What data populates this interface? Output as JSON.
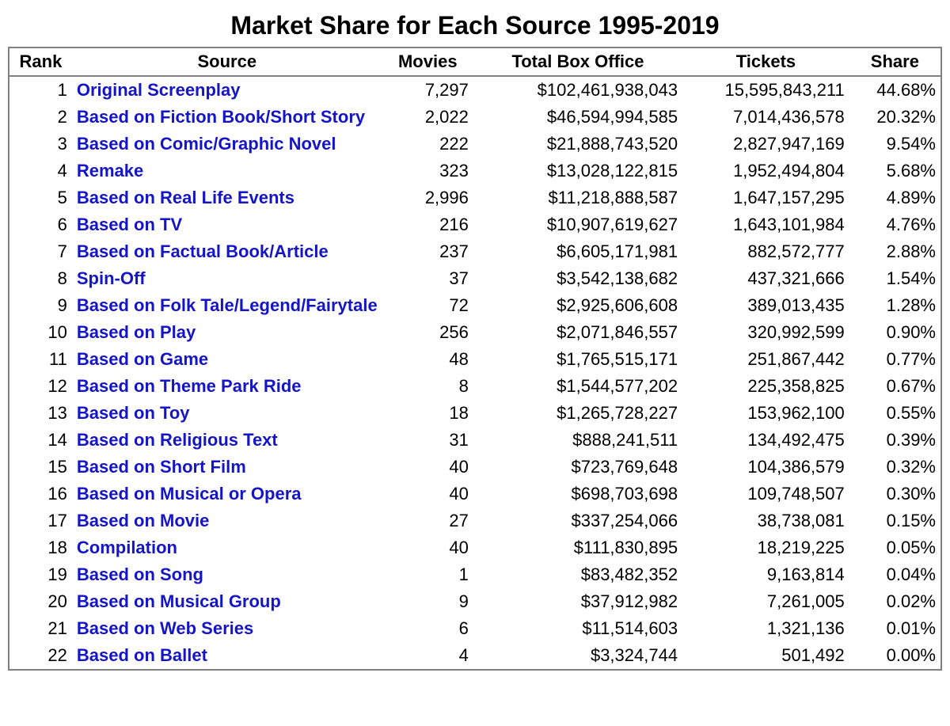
{
  "title": "Market Share for Each Source 1995-2019",
  "columns": {
    "rank": "Rank",
    "source": "Source",
    "movies": "Movies",
    "box": "Total Box Office",
    "tickets": "Tickets",
    "share": "Share"
  },
  "link_color": "#1515c8",
  "border_color": "#808080",
  "rows": [
    {
      "rank": "1",
      "source": "Original Screenplay",
      "movies": "7,297",
      "box": "$102,461,938,043",
      "tickets": "15,595,843,211",
      "share": "44.68%"
    },
    {
      "rank": "2",
      "source": "Based on Fiction Book/Short Story",
      "movies": "2,022",
      "box": "$46,594,994,585",
      "tickets": "7,014,436,578",
      "share": "20.32%"
    },
    {
      "rank": "3",
      "source": "Based on Comic/Graphic Novel",
      "movies": "222",
      "box": "$21,888,743,520",
      "tickets": "2,827,947,169",
      "share": "9.54%"
    },
    {
      "rank": "4",
      "source": "Remake",
      "movies": "323",
      "box": "$13,028,122,815",
      "tickets": "1,952,494,804",
      "share": "5.68%"
    },
    {
      "rank": "5",
      "source": "Based on Real Life Events",
      "movies": "2,996",
      "box": "$11,218,888,587",
      "tickets": "1,647,157,295",
      "share": "4.89%"
    },
    {
      "rank": "6",
      "source": "Based on TV",
      "movies": "216",
      "box": "$10,907,619,627",
      "tickets": "1,643,101,984",
      "share": "4.76%"
    },
    {
      "rank": "7",
      "source": "Based on Factual Book/Article",
      "movies": "237",
      "box": "$6,605,171,981",
      "tickets": "882,572,777",
      "share": "2.88%"
    },
    {
      "rank": "8",
      "source": "Spin-Off",
      "movies": "37",
      "box": "$3,542,138,682",
      "tickets": "437,321,666",
      "share": "1.54%"
    },
    {
      "rank": "9",
      "source": "Based on Folk Tale/Legend/Fairytale",
      "movies": "72",
      "box": "$2,925,606,608",
      "tickets": "389,013,435",
      "share": "1.28%"
    },
    {
      "rank": "10",
      "source": "Based on Play",
      "movies": "256",
      "box": "$2,071,846,557",
      "tickets": "320,992,599",
      "share": "0.90%"
    },
    {
      "rank": "11",
      "source": "Based on Game",
      "movies": "48",
      "box": "$1,765,515,171",
      "tickets": "251,867,442",
      "share": "0.77%"
    },
    {
      "rank": "12",
      "source": "Based on Theme Park Ride",
      "movies": "8",
      "box": "$1,544,577,202",
      "tickets": "225,358,825",
      "share": "0.67%"
    },
    {
      "rank": "13",
      "source": "Based on Toy",
      "movies": "18",
      "box": "$1,265,728,227",
      "tickets": "153,962,100",
      "share": "0.55%"
    },
    {
      "rank": "14",
      "source": "Based on Religious Text",
      "movies": "31",
      "box": "$888,241,511",
      "tickets": "134,492,475",
      "share": "0.39%"
    },
    {
      "rank": "15",
      "source": "Based on Short Film",
      "movies": "40",
      "box": "$723,769,648",
      "tickets": "104,386,579",
      "share": "0.32%"
    },
    {
      "rank": "16",
      "source": "Based on Musical or Opera",
      "movies": "40",
      "box": "$698,703,698",
      "tickets": "109,748,507",
      "share": "0.30%"
    },
    {
      "rank": "17",
      "source": "Based on Movie",
      "movies": "27",
      "box": "$337,254,066",
      "tickets": "38,738,081",
      "share": "0.15%"
    },
    {
      "rank": "18",
      "source": "Compilation",
      "movies": "40",
      "box": "$111,830,895",
      "tickets": "18,219,225",
      "share": "0.05%"
    },
    {
      "rank": "19",
      "source": "Based on Song",
      "movies": "1",
      "box": "$83,482,352",
      "tickets": "9,163,814",
      "share": "0.04%"
    },
    {
      "rank": "20",
      "source": "Based on Musical Group",
      "movies": "9",
      "box": "$37,912,982",
      "tickets": "7,261,005",
      "share": "0.02%"
    },
    {
      "rank": "21",
      "source": "Based on Web Series",
      "movies": "6",
      "box": "$11,514,603",
      "tickets": "1,321,136",
      "share": "0.01%"
    },
    {
      "rank": "22",
      "source": "Based on Ballet",
      "movies": "4",
      "box": "$3,324,744",
      "tickets": "501,492",
      "share": "0.00%"
    }
  ]
}
